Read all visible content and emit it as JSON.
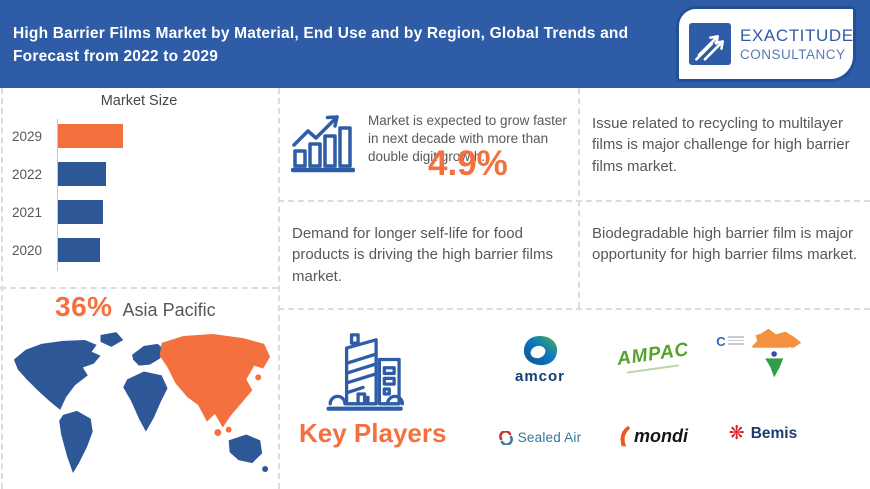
{
  "header": {
    "title": "High Barrier Films Market by Material, End Use and by Region, Global Trends and Forecast from 2022 to 2029",
    "brand_line1": "EXACTITUDE",
    "brand_line2": "CONSULTANCY"
  },
  "chart_data": {
    "type": "bar",
    "orientation": "horizontal",
    "title": "Market Size",
    "categories": [
      "2029",
      "2022",
      "2021",
      "2020"
    ],
    "values": [
      66,
      49,
      46,
      43
    ],
    "value_note": "relative bar lengths in px; no numeric axis shown",
    "bar_colors": [
      "#f4713f",
      "#2d5796",
      "#2d5796",
      "#2d5796"
    ],
    "highlight_category": "2029",
    "grid": false,
    "legend": false
  },
  "region_highlight": {
    "value": "36%",
    "label": "Asia Pacific"
  },
  "cards": {
    "growth": {
      "text": "Market is expected to grow faster in next decade with more than double digit growth.",
      "value": "4.9%"
    },
    "challenge": {
      "text": "Issue related to recycling to multilayer films is major challenge for high barrier films market."
    },
    "driver": {
      "text": "Demand for longer self-life for food products is driving the high barrier films market."
    },
    "opportunity": {
      "text": "Biodegradable high barrier film is major opportunity for high barrier films market."
    }
  },
  "key_players": {
    "title": "Key Players",
    "companies": [
      "amcor",
      "AMPAC",
      "C",
      "Sealed Air",
      "mondi",
      "Bemis"
    ]
  },
  "icons": {
    "bemis_pinwheel_glyph": "❋"
  },
  "colors": {
    "header_blue": "#2e5ca6",
    "bar_blue": "#2d5796",
    "accent_orange": "#f4713f",
    "body_text": "#55595c"
  }
}
